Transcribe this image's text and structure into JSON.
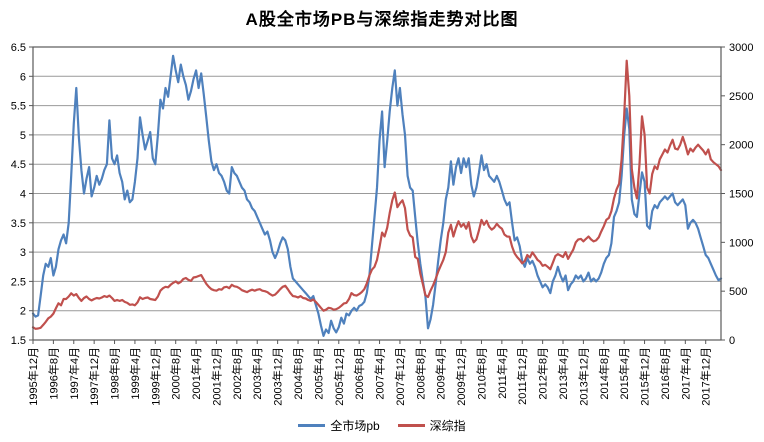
{
  "title": "A股全市场PB与深综指走势对比图",
  "chart_data": {
    "type": "line",
    "title": "A股全市场PB与深综指走势对比图",
    "x_interval": "monthly",
    "x_start_label": "1995年12月",
    "x_tick_every_n_months": 8,
    "x_tick_labels": [
      "1995年12月",
      "1996年8月",
      "1997年4月",
      "1997年12月",
      "1998年8月",
      "1999年4月",
      "1999年12月",
      "2000年8月",
      "2001年4月",
      "2001年12月",
      "2002年8月",
      "2003年4月",
      "2003年12月",
      "2004年8月",
      "2005年4月",
      "2005年12月",
      "2006年8月",
      "2007年4月",
      "2007年12月",
      "2008年8月",
      "2009年4月",
      "2009年12月",
      "2010年8月",
      "2011年4月",
      "2011年12月",
      "2012年8月",
      "2013年4月",
      "2013年12月",
      "2014年8月",
      "2015年4月",
      "2015年12月",
      "2016年8月",
      "2017年4月",
      "2017年12月"
    ],
    "left_axis": {
      "min": 1.5,
      "max": 6.5,
      "step": 0.5,
      "tick_labels": [
        "6.5",
        "6",
        "5.5",
        "5",
        "4.5",
        "4",
        "3.5",
        "3",
        "2.5",
        "2",
        "1.5"
      ]
    },
    "right_axis": {
      "min": 0,
      "max": 3000,
      "step": 500,
      "tick_labels": [
        "3000",
        "2500",
        "2000",
        "1500",
        "1000",
        "500",
        "0"
      ]
    },
    "grid": true,
    "legend_position": "bottom",
    "series": [
      {
        "name": "全市场pb",
        "axis": "left",
        "color": "#4F81BD",
        "values": [
          1.95,
          1.9,
          1.92,
          2.25,
          2.6,
          2.8,
          2.75,
          2.9,
          2.6,
          2.75,
          3.05,
          3.2,
          3.3,
          3.15,
          3.5,
          4.3,
          5.2,
          5.8,
          4.95,
          4.4,
          4.0,
          4.25,
          4.45,
          3.95,
          4.1,
          4.3,
          4.15,
          4.25,
          4.4,
          4.5,
          5.25,
          4.6,
          4.5,
          4.65,
          4.35,
          4.2,
          3.9,
          4.05,
          3.85,
          3.9,
          4.2,
          4.6,
          5.3,
          5.0,
          4.75,
          4.9,
          5.05,
          4.6,
          4.5,
          5.0,
          5.6,
          5.45,
          5.8,
          5.65,
          6.0,
          6.35,
          6.1,
          5.9,
          6.2,
          6.0,
          5.85,
          5.6,
          5.75,
          5.95,
          6.1,
          5.8,
          6.05,
          5.7,
          5.3,
          4.9,
          4.55,
          4.4,
          4.5,
          4.35,
          4.3,
          4.2,
          4.05,
          4.0,
          4.45,
          4.35,
          4.3,
          4.2,
          4.1,
          4.05,
          3.9,
          3.85,
          3.75,
          3.7,
          3.6,
          3.5,
          3.4,
          3.3,
          3.35,
          3.2,
          3.0,
          2.9,
          3.0,
          3.15,
          3.25,
          3.2,
          3.05,
          2.75,
          2.55,
          2.5,
          2.45,
          2.4,
          2.35,
          2.3,
          2.25,
          2.2,
          2.25,
          2.1,
          1.95,
          1.75,
          1.57,
          1.68,
          1.62,
          1.83,
          1.7,
          1.63,
          1.72,
          1.88,
          1.78,
          1.95,
          1.92,
          2.0,
          2.05,
          2.0,
          2.08,
          2.1,
          2.15,
          2.3,
          2.6,
          3.1,
          3.6,
          4.1,
          4.9,
          5.4,
          4.45,
          4.9,
          5.4,
          5.8,
          6.1,
          5.5,
          5.8,
          5.35,
          5.0,
          4.3,
          4.1,
          4.05,
          3.6,
          3.15,
          2.8,
          2.5,
          2.25,
          1.7,
          1.85,
          2.1,
          2.45,
          2.85,
          3.2,
          3.5,
          3.9,
          4.1,
          4.55,
          4.15,
          4.45,
          4.6,
          4.35,
          4.6,
          4.45,
          4.6,
          4.15,
          3.95,
          4.1,
          4.35,
          4.65,
          4.4,
          4.5,
          4.3,
          4.25,
          4.2,
          4.3,
          4.2,
          4.05,
          3.9,
          3.8,
          3.85,
          3.5,
          3.2,
          3.25,
          3.1,
          2.85,
          2.75,
          2.9,
          2.8,
          2.85,
          2.75,
          2.6,
          2.5,
          2.4,
          2.45,
          2.4,
          2.3,
          2.5,
          2.6,
          2.75,
          2.6,
          2.5,
          2.6,
          2.35,
          2.45,
          2.5,
          2.6,
          2.55,
          2.6,
          2.5,
          2.55,
          2.65,
          2.5,
          2.55,
          2.5,
          2.55,
          2.65,
          2.8,
          2.9,
          2.95,
          3.15,
          3.6,
          3.7,
          3.85,
          4.3,
          5.0,
          5.45,
          5.1,
          3.9,
          3.65,
          3.6,
          4.0,
          4.36,
          4.2,
          3.45,
          3.4,
          3.7,
          3.8,
          3.75,
          3.85,
          3.9,
          3.95,
          3.9,
          3.95,
          4.0,
          3.85,
          3.8,
          3.85,
          3.9,
          3.8,
          3.4,
          3.5,
          3.55,
          3.5,
          3.4,
          3.25,
          3.1,
          2.95,
          2.9,
          2.8,
          2.7,
          2.6,
          2.52,
          2.55
        ]
      },
      {
        "name": "深综指",
        "axis": "right",
        "color": "#C0504D",
        "values": [
          130,
          115,
          118,
          125,
          155,
          185,
          222,
          240,
          270,
          325,
          376,
          355,
          420,
          420,
          445,
          478,
          455,
          470,
          430,
          400,
          430,
          445,
          420,
          405,
          420,
          430,
          425,
          435,
          450,
          440,
          455,
          430,
          400,
          410,
          400,
          410,
          390,
          380,
          360,
          365,
          355,
          385,
          437,
          420,
          430,
          435,
          420,
          415,
          410,
          445,
          505,
          530,
          545,
          540,
          565,
          585,
          600,
          580,
          595,
          625,
          635,
          615,
          605,
          640,
          645,
          655,
          665,
          620,
          575,
          545,
          520,
          510,
          505,
          520,
          515,
          540,
          545,
          530,
          565,
          550,
          545,
          530,
          510,
          500,
          490,
          505,
          515,
          505,
          515,
          520,
          505,
          500,
          490,
          470,
          455,
          465,
          490,
          520,
          545,
          555,
          520,
          480,
          450,
          445,
          435,
          450,
          430,
          425,
          410,
          400,
          415,
          390,
          360,
          330,
          300,
          310,
          330,
          325,
          310,
          315,
          330,
          350,
          375,
          380,
          420,
          480,
          460,
          455,
          470,
          490,
          520,
          580,
          660,
          720,
          750,
          820,
          950,
          1100,
          1060,
          1150,
          1300,
          1430,
          1510,
          1360,
          1400,
          1430,
          1350,
          1130,
          1070,
          1050,
          850,
          830,
          680,
          570,
          460,
          440,
          505,
          560,
          625,
          700,
          760,
          820,
          900,
          1100,
          1180,
          1060,
          1150,
          1215,
          1160,
          1190,
          1140,
          1205,
          1060,
          1000,
          1030,
          1120,
          1230,
          1180,
          1220,
          1160,
          1130,
          1150,
          1190,
          1160,
          1140,
          1080,
          1060,
          1058,
          956,
          887,
          850,
          820,
          785,
          810,
          870,
          845,
          897,
          860,
          820,
          800,
          760,
          770,
          750,
          725,
          790,
          860,
          880,
          865,
          850,
          900,
          830,
          880,
          925,
          1000,
          1030,
          1035,
          1010,
          1035,
          1060,
          1030,
          1010,
          1020,
          1050,
          1110,
          1165,
          1230,
          1250,
          1320,
          1450,
          1540,
          1600,
          1850,
          2300,
          2860,
          2500,
          1750,
          1560,
          1450,
          1800,
          2290,
          2100,
          1560,
          1500,
          1700,
          1780,
          1750,
          1850,
          1900,
          1950,
          1920,
          1990,
          2050,
          1960,
          1950,
          2000,
          2080,
          2000,
          1900,
          1960,
          1930,
          1970,
          2000,
          1970,
          1940,
          1900,
          1950,
          1850,
          1820,
          1800,
          1780,
          1740
        ]
      }
    ]
  },
  "colors": {
    "pb_line": "#4F81BD",
    "index_line": "#C0504D",
    "gridline": "#999999",
    "frame": "#595959",
    "text": "#000000",
    "background": "#ffffff"
  }
}
